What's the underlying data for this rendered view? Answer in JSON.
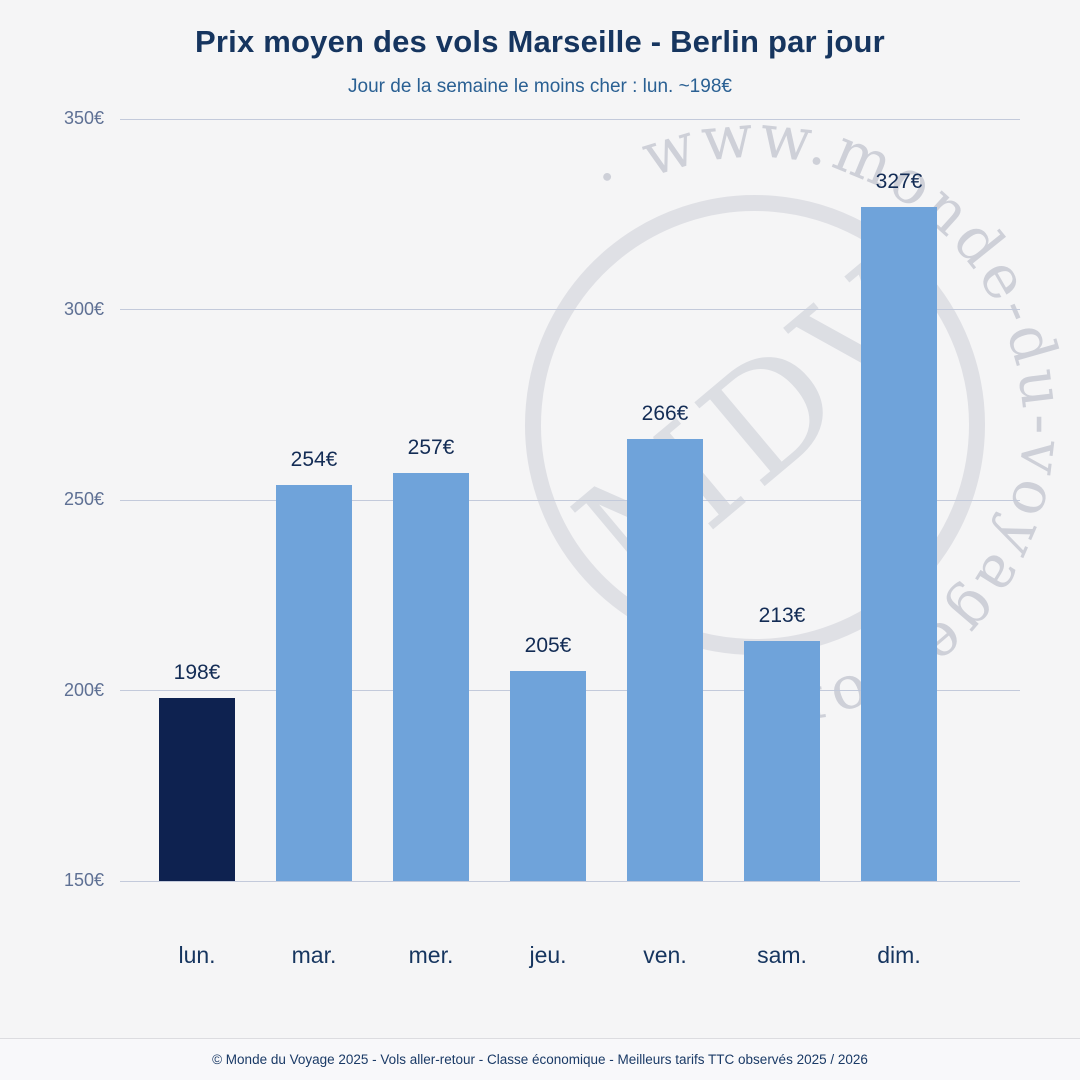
{
  "header": {
    "title": "Prix moyen des vols Marseille - Berlin par jour",
    "subtitle": "Jour de la semaine le moins cher : lun. ~198€"
  },
  "chart_data": {
    "type": "bar",
    "title": "Prix moyen des vols Marseille - Berlin par jour",
    "subtitle": "Jour de la semaine le moins cher : lun. ~198€",
    "categories": [
      "lun.",
      "mar.",
      "mer.",
      "jeu.",
      "ven.",
      "sam.",
      "dim."
    ],
    "values": [
      198,
      254,
      257,
      205,
      266,
      213,
      327
    ],
    "value_labels": [
      "198€",
      "254€",
      "257€",
      "205€",
      "266€",
      "213€",
      "327€"
    ],
    "ylim": [
      150,
      350
    ],
    "yticks": [
      150,
      200,
      250,
      300,
      350
    ],
    "ytick_labels": [
      "150€",
      "200€",
      "250€",
      "300€",
      "350€"
    ],
    "grid": true,
    "legend": false,
    "highlight_index": 0,
    "bar_color": "#6fa3da",
    "highlight_color": "#0e2250"
  },
  "watermark": {
    "circle_text": "· www.monde-du-voyage.com",
    "center_text": "MDV"
  },
  "footer": {
    "text": "© Monde du Voyage 2025 - Vols aller-retour - Classe économique - Meilleurs tarifs TTC observés 2025 / 2026"
  },
  "colors": {
    "background": "#f5f5f6",
    "title": "#16355f",
    "subtitle": "#2a6093",
    "gridline": "#c3cadb",
    "ytick": "#5e7094",
    "bar": "#6fa3da",
    "highlight_bar": "#0e2250",
    "value_label": "#132c55"
  }
}
